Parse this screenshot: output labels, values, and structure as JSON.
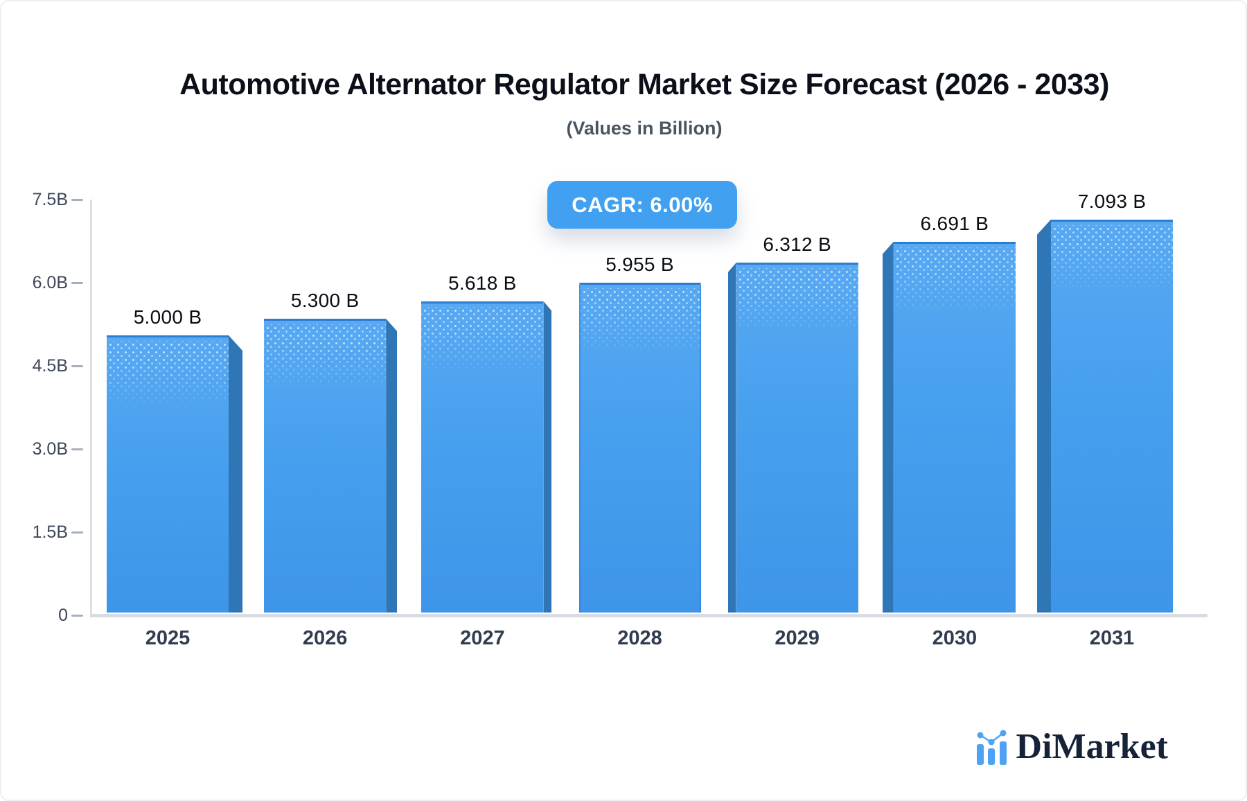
{
  "header": {
    "title": "Automotive Alternator Regulator Market Size Forecast (2026 - 2033)",
    "subtitle": "(Values in Billion)"
  },
  "badge": {
    "label": "CAGR: 6.00%"
  },
  "chart_data": {
    "type": "bar",
    "title": "Automotive Alternator Regulator Market Size Forecast (2026 - 2033)",
    "subtitle": "(Values in Billion)",
    "cagr_label": "CAGR: 6.00%",
    "categories": [
      "2025",
      "2026",
      "2027",
      "2028",
      "2029",
      "2030",
      "2031"
    ],
    "values": [
      5.0,
      5.3,
      5.618,
      5.955,
      6.312,
      6.691,
      7.093
    ],
    "value_labels": [
      "5.000 B",
      "5.300 B",
      "5.618 B",
      "5.955 B",
      "6.312 B",
      "6.691 B",
      "7.093 B"
    ],
    "unit": "Billion",
    "xlabel": "",
    "ylabel": "",
    "ylim": [
      0,
      7.5
    ],
    "y_ticks": [
      {
        "label": "7.5B",
        "value": 7.5
      },
      {
        "label": "6.0B",
        "value": 6.0
      },
      {
        "label": "4.5B",
        "value": 4.5
      },
      {
        "label": "3.0B",
        "value": 3.0
      },
      {
        "label": "1.5B",
        "value": 1.5
      },
      {
        "label": "0",
        "value": 0
      }
    ],
    "grid": false,
    "legend": false,
    "bar_style": "3d-perspective-toward-center"
  },
  "logo": {
    "text": "DiMarket",
    "icon": "mini-bar-chart-logo-icon"
  },
  "colors": {
    "bar_face_top": "#58A9F2",
    "bar_face_bottom": "#3E95E9",
    "bar_side": "#2E76B6",
    "bar_top_line": "#2B7CD3",
    "badge_bg": "#41A1F0",
    "badge_text": "#FFFFFF",
    "baseline": "#D9DDE2",
    "logo_navy": "#152238",
    "logo_blue": "#4DA2F5"
  }
}
